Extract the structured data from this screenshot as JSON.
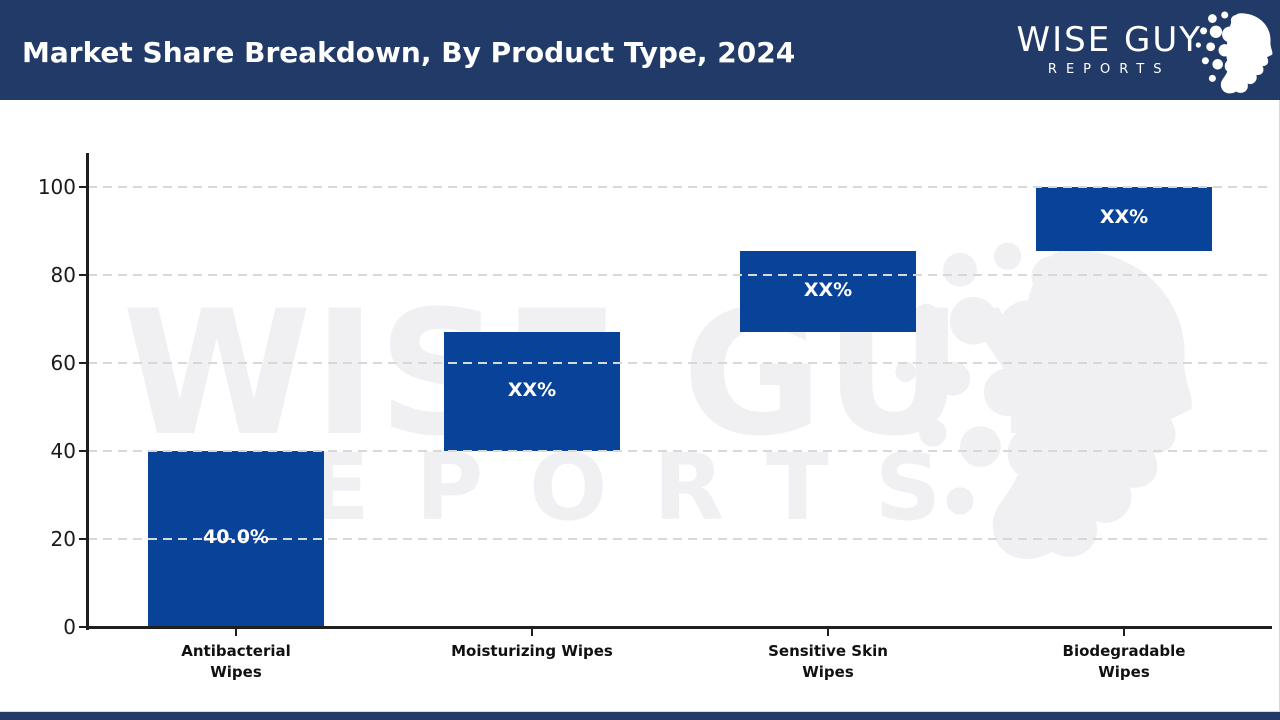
{
  "header": {
    "title": "Market Share Breakdown, By Product Type, 2024",
    "logo_line1": "WISE GUY",
    "logo_line2": "REPORTS"
  },
  "watermark": {
    "line1": "WISE GUY",
    "line2": "REPORTS"
  },
  "chart_data": {
    "type": "bar",
    "variant": "floating-waterfall",
    "title": "Market Share Breakdown, By Product Type, 2024",
    "categories": [
      [
        "Antibacterial",
        "Wipes"
      ],
      [
        "Moisturizing Wipes"
      ],
      [
        "Sensitive Skin",
        "Wipes"
      ],
      [
        "Biodegradable",
        "Wipes"
      ]
    ],
    "bars": [
      {
        "name": "Antibacterial Wipes",
        "start": 0,
        "end": 40,
        "label": "40.0%"
      },
      {
        "name": "Moisturizing Wipes",
        "start": 40,
        "end": 67,
        "label": "XX%"
      },
      {
        "name": "Sensitive Skin Wipes",
        "start": 67,
        "end": 85.5,
        "label": "XX%"
      },
      {
        "name": "Biodegradable Wipes",
        "start": 85.5,
        "end": 100,
        "label": "XX%"
      }
    ],
    "ylim": [
      0,
      100
    ],
    "yticks": [
      0,
      20,
      40,
      60,
      80,
      100
    ],
    "grid": {
      "axis": "y",
      "style": "dashed",
      "color": "#d8d8d8",
      "drawn_over_bars": true
    },
    "legend": null,
    "colors": {
      "bar": "#084299",
      "bar_label": "#ffffff",
      "axis": "#1f1f1f",
      "tick_label": "#1a1a1a",
      "header_bg": "#223A67",
      "watermark": "#f0f0f3"
    }
  }
}
